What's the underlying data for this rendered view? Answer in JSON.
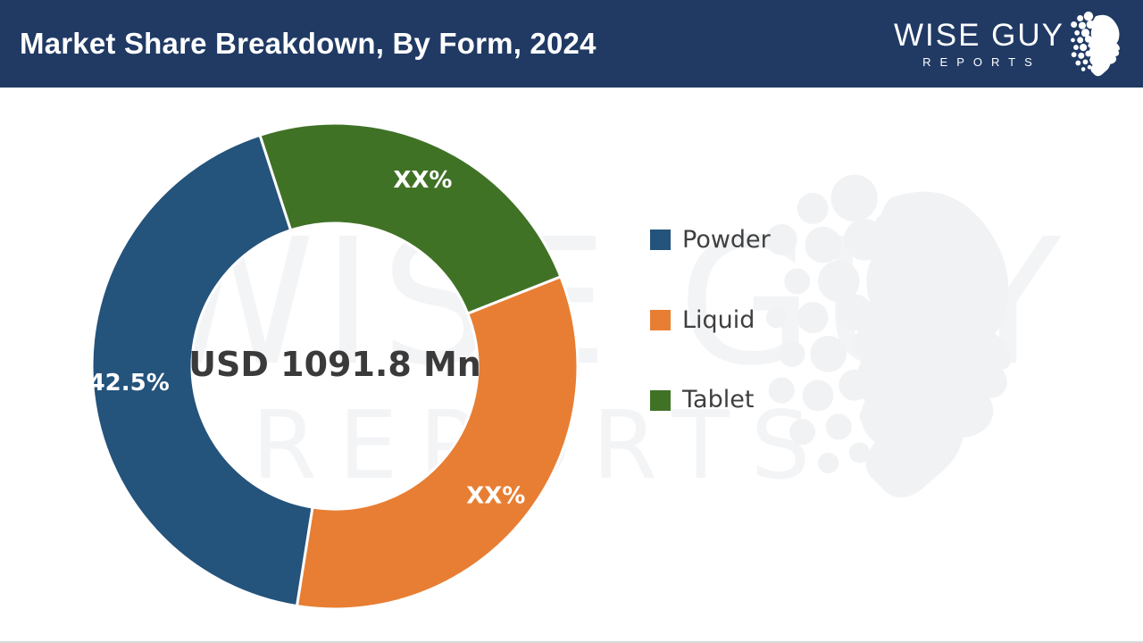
{
  "header": {
    "title": "Market Share Breakdown, By Form, 2024",
    "bg_color": "#203A64",
    "logo": {
      "name": "Wise Guy Reports",
      "line1": "WISE GUY",
      "line2": "REPORTS"
    }
  },
  "watermark": {
    "line1": "WISE GUY",
    "line2": "REPORTS"
  },
  "chart_data": {
    "type": "pie",
    "subtype": "donut",
    "title": "Market Share Breakdown, By Form, 2024",
    "center_label": "USD 1091.8 Mn",
    "start_angle_deg": -18,
    "rotation_direction": "clockwise",
    "segments": [
      {
        "name": "Tablet",
        "label": "XX%",
        "value_pct": 24.0,
        "color": "#407226"
      },
      {
        "name": "Liquid",
        "label": "XX%",
        "value_pct": 33.5,
        "color": "#E87E33"
      },
      {
        "name": "Powder",
        "label": "42.5%",
        "value_pct": 42.5,
        "color": "#24537B"
      }
    ],
    "legend": {
      "position": "right",
      "items": [
        {
          "label": "Powder",
          "color": "#24537B"
        },
        {
          "label": "Liquid",
          "color": "#E87E33"
        },
        {
          "label": "Tablet",
          "color": "#407226"
        }
      ]
    }
  },
  "footer": {
    "border_color": "#D9D9D9"
  }
}
